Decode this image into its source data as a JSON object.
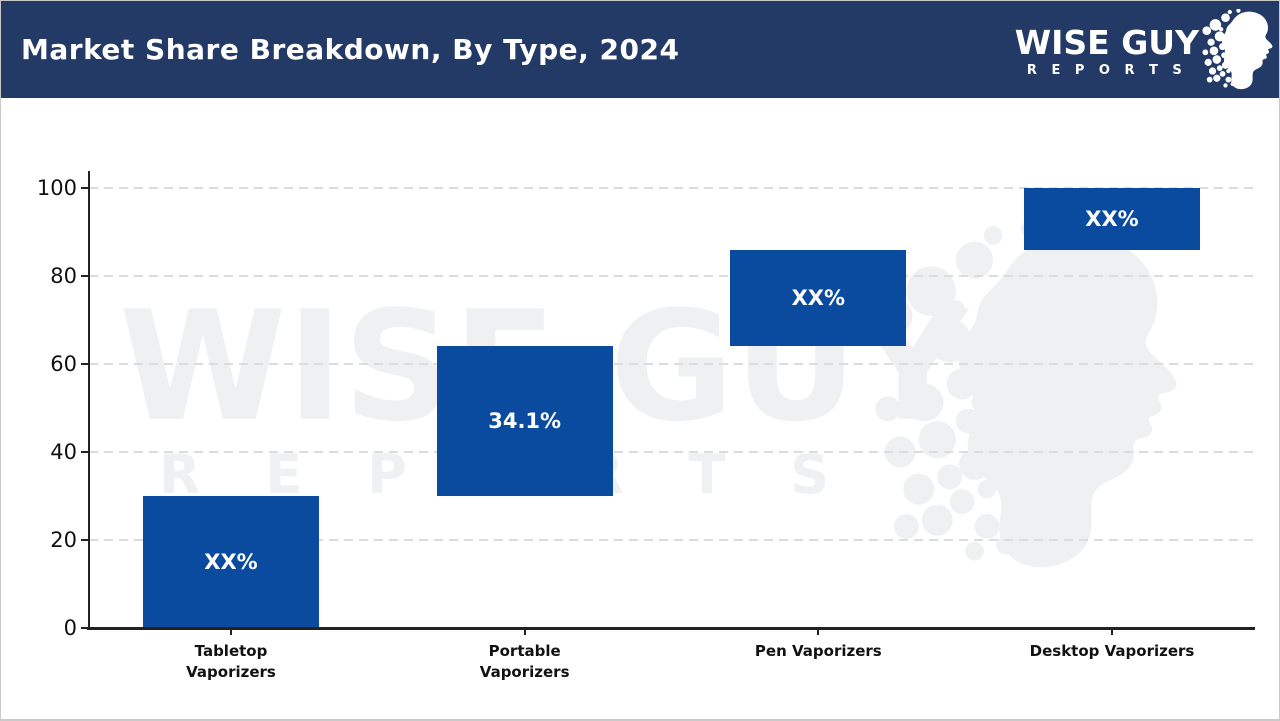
{
  "header": {
    "title": "Market Share Breakdown, By Type, 2024",
    "logo": {
      "line1": "WISE GUY",
      "line2": "R E P O R T S"
    }
  },
  "watermark": {
    "line1": "WISE GUY",
    "line2": "R E P O R T S"
  },
  "colors": {
    "header_bg": "#233A66",
    "bar_fill": "#0B4B9F",
    "bar_label": "#FFFFFF",
    "grid_line": "#DCDCDC",
    "axis_line": "#222222",
    "tick_label": "#111111",
    "watermark_gray": "#EFF0F2"
  },
  "chart_data": {
    "type": "bar",
    "subtype": "floating-waterfall",
    "title": "Market Share Breakdown, By Type, 2024",
    "xlabel": "",
    "ylabel": "",
    "ylim": [
      0,
      100
    ],
    "yticks": [
      0,
      20,
      40,
      60,
      80,
      100
    ],
    "grid": "dashed-horizontal",
    "legend": "none",
    "categories": [
      "Tabletop Vaporizers",
      "Portable Vaporizers",
      "Pen Vaporizers",
      "Desktop Vaporizers"
    ],
    "category_label_lines": [
      [
        "Tabletop",
        "Vaporizers"
      ],
      [
        "Portable",
        "Vaporizers"
      ],
      [
        "Pen Vaporizers"
      ],
      [
        "Desktop Vaporizers"
      ]
    ],
    "bars": [
      {
        "category": "Tabletop Vaporizers",
        "base": 0,
        "top": 30,
        "label": "XX%"
      },
      {
        "category": "Portable Vaporizers",
        "base": 30,
        "top": 64.1,
        "label": "34.1%"
      },
      {
        "category": "Pen Vaporizers",
        "base": 64.1,
        "top": 86,
        "label": "XX%"
      },
      {
        "category": "Desktop Vaporizers",
        "base": 86,
        "top": 100,
        "label": "XX%"
      }
    ]
  }
}
